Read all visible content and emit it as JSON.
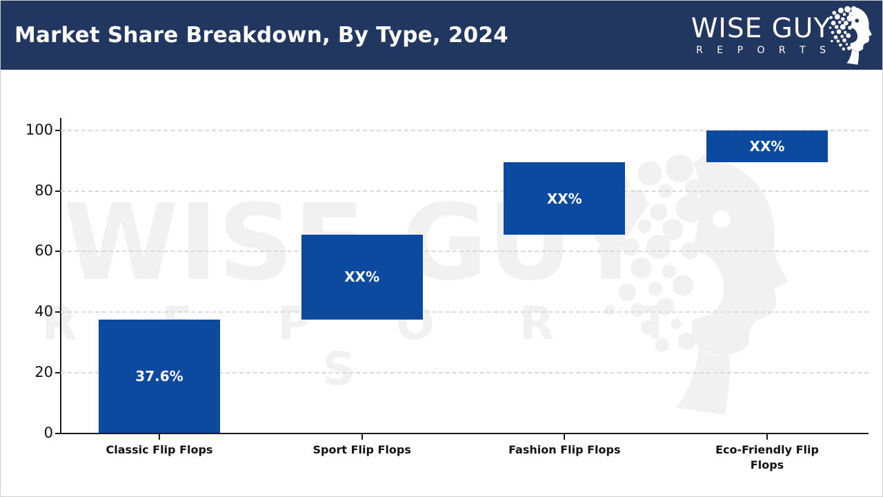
{
  "header": {
    "title": "Market Share Breakdown, By Type, 2024",
    "logo": {
      "line1": "WISE GUY",
      "line2": "R E P O R T S",
      "icon": "dotted-head-profile"
    },
    "bg_color": "#223760"
  },
  "watermark": {
    "line1": "WISE GUY",
    "line2": "R E P O R T S",
    "icon": "dotted-head-profile",
    "color": "#f1f1f1"
  },
  "chart_data": {
    "type": "bar",
    "subtype": "waterfall",
    "title": "Market Share Breakdown, By Type, 2024",
    "categories": [
      "Classic Flip Flops",
      "Sport Flip Flops",
      "Fashion Flip Flops",
      "Eco-Friendly Flip Flops"
    ],
    "segments": [
      {
        "category": "Classic Flip Flops",
        "start": 0,
        "end": 37.6,
        "value_label": "37.6%"
      },
      {
        "category": "Sport Flip Flops",
        "start": 37.6,
        "end": 65.6,
        "value_label": "XX%"
      },
      {
        "category": "Fashion Flip Flops",
        "start": 65.6,
        "end": 89.4,
        "value_label": "XX%"
      },
      {
        "category": "Eco-Friendly Flip Flops",
        "start": 89.4,
        "end": 100,
        "value_label": "XX%"
      }
    ],
    "xlabel": "",
    "ylabel": "",
    "ylim": [
      0,
      100
    ],
    "yticks": [
      0,
      20,
      40,
      60,
      80,
      100
    ],
    "grid": "horizontal dashed",
    "legend": "none",
    "colors": {
      "bar": "#0b4a9e",
      "bar_label": "#ffffff",
      "grid": "#d9d9d9",
      "axis": "#1a1a1a",
      "tick_label": "#111111"
    }
  }
}
